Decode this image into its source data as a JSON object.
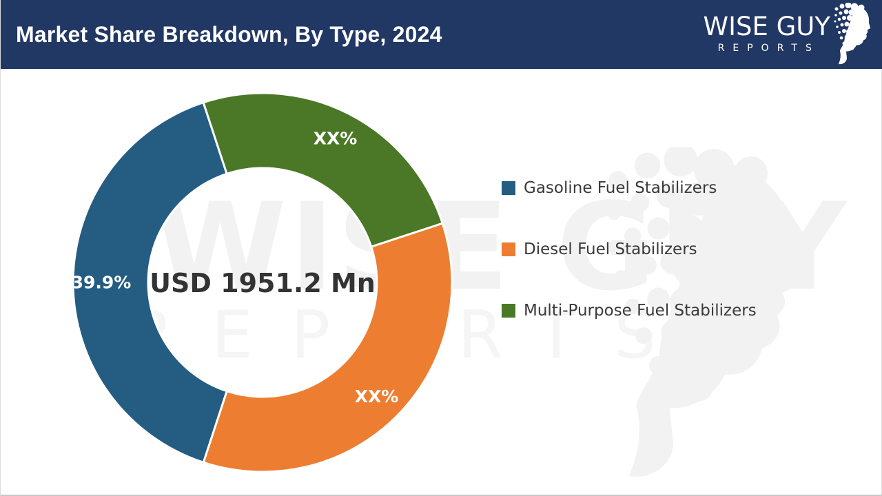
{
  "header": {
    "title": "Market Share Breakdown, By Type, 2024",
    "logo": {
      "line1": "WISE GUY",
      "line2": "REPORTS"
    }
  },
  "watermark": {
    "line1": "WISE GUY",
    "line2": "REPORTS"
  },
  "chart_data": {
    "type": "pie",
    "variant": "donut",
    "title": "Market Share Breakdown, By Type, 2024",
    "center_label": "USD 1951.2 Mn",
    "year": "2024",
    "start_angle_deg": 108.2,
    "direction": "counterclockwise",
    "legend_position": "right",
    "segments": [
      {
        "name": "Gasoline Fuel Stabilizers",
        "value_pct": 39.9,
        "label": "39.9%",
        "color": "#245C82"
      },
      {
        "name": "Diesel Fuel Stabilizers",
        "value_pct": 35.1,
        "label": "XX%",
        "color": "#ED7D31"
      },
      {
        "name": "Multi-Purpose Fuel Stabilizers",
        "value_pct": 25.0,
        "label": "XX%",
        "color": "#4A7827"
      }
    ]
  }
}
